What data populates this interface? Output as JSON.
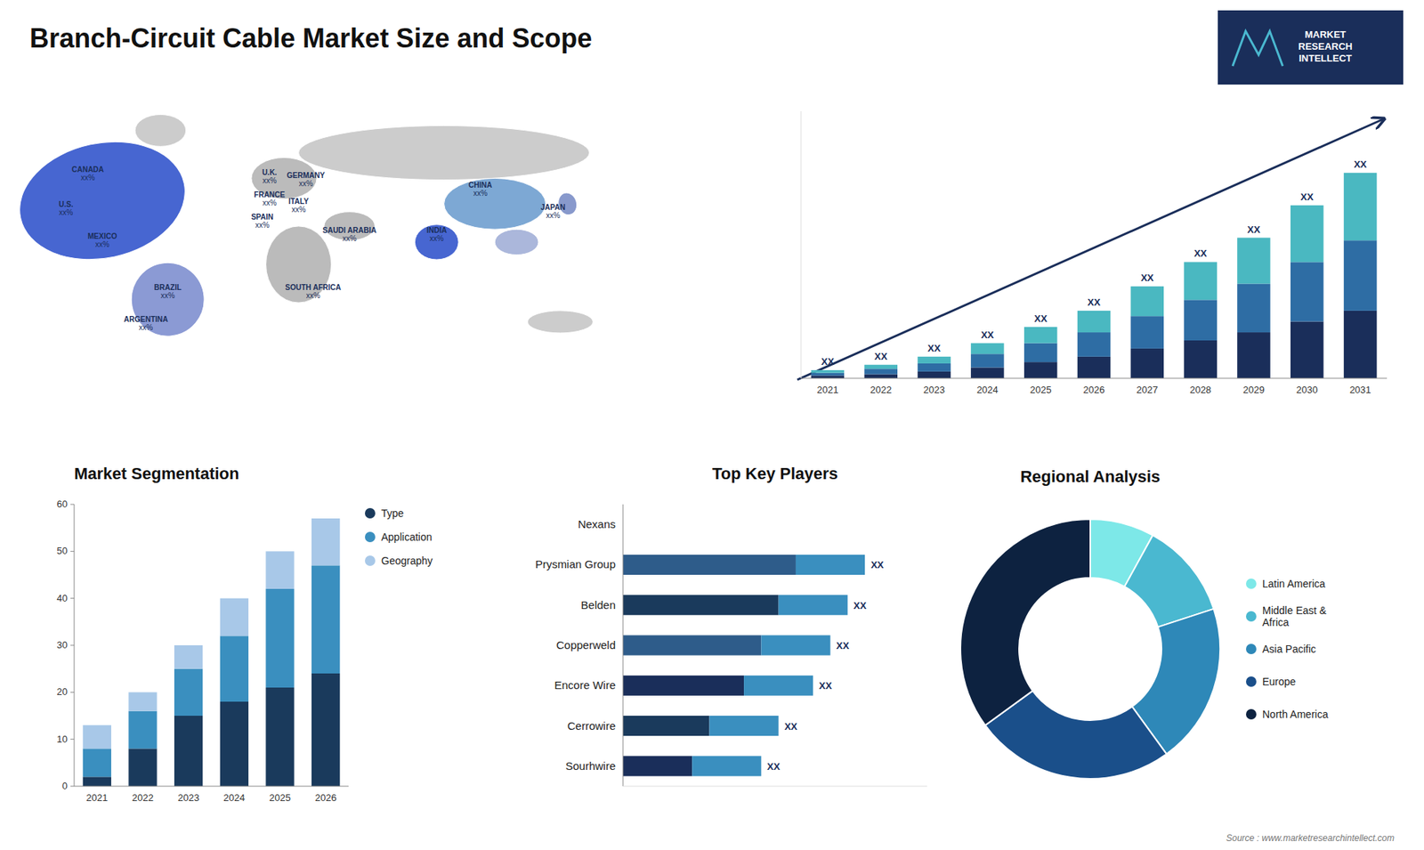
{
  "title": "Branch-Circuit Cable Market Size and Scope",
  "annotations": [
    "Source : www.marketresearchintellect.com",
    "MARKET",
    "RESEARCH",
    "INTELLECT"
  ],
  "chart_data": [
    {
      "type": "map",
      "categories": [
        "CANADA",
        "U.S.",
        "MEXICO",
        "BRAZIL",
        "ARGENTINA",
        "U.K.",
        "FRANCE",
        "SPAIN",
        "GERMANY",
        "ITALY",
        "SAUDI ARABIA",
        "SOUTH AFRICA",
        "CHINA",
        "JAPAN",
        "INDIA"
      ],
      "annotations": [
        "xx%",
        "xx%",
        "xx%",
        "xx%",
        "xx%",
        "xx%",
        "xx%",
        "xx%",
        "xx%",
        "xx%",
        "xx%",
        "xx%",
        "xx%",
        "xx%",
        "xx%"
      ]
    },
    {
      "type": "bar",
      "stacked": true,
      "categories": [
        "2021",
        "2022",
        "2023",
        "2024",
        "2025",
        "2026",
        "2027",
        "2028",
        "2029",
        "2030",
        "2031"
      ],
      "series": [
        {
          "color": "#1a2e5a",
          "values": [
            1,
            1.5,
            2.5,
            4,
            6,
            8,
            11,
            14,
            17,
            21,
            25
          ]
        },
        {
          "color": "#2e6da4",
          "values": [
            1,
            2,
            3,
            5,
            7,
            9,
            12,
            15,
            18,
            22,
            26
          ]
        },
        {
          "color": "#4ab8c1",
          "values": [
            1,
            1.5,
            2.5,
            4,
            6,
            8,
            11,
            14,
            17,
            21,
            25
          ]
        }
      ],
      "ylim": [
        0,
        98.8
      ],
      "tick_labels": "x",
      "grid": false,
      "annotations": [
        "XX",
        "XX",
        "XX",
        "XX",
        "XX",
        "XX",
        "XX",
        "XX",
        "XX",
        "XX",
        "XX"
      ]
    },
    {
      "type": "bar",
      "title": "Market Segmentation",
      "stacked": true,
      "categories": [
        "2021",
        "2022",
        "2023",
        "2024",
        "2025",
        "2026"
      ],
      "series": [
        {
          "name": "Type",
          "color": "#1a3a5c",
          "values": [
            2,
            8,
            15,
            18,
            21,
            24
          ]
        },
        {
          "name": "Application",
          "color": "#3a8fbf",
          "values": [
            6,
            8,
            10,
            14,
            21,
            23
          ]
        },
        {
          "name": "Geography",
          "color": "#a8c8e8",
          "values": [
            5,
            4,
            5,
            8,
            8,
            10
          ]
        }
      ],
      "ylim": [
        0,
        60
      ],
      "yticks": [
        0,
        10,
        20,
        30,
        40,
        50,
        60
      ],
      "legend": "right",
      "grid": false
    },
    {
      "type": "bar",
      "title": "Top Key Players",
      "orientation": "horizontal",
      "stacked": true,
      "categories": [
        "Nexans",
        "Prysmian Group",
        "Belden",
        "Copperweld",
        "Encore Wire",
        "Cerrowire",
        "Sourhwire"
      ],
      "series": [
        {
          "colors": [
            "#1a2e5a",
            "#2e5c8a",
            "#1a3a5c",
            "#2e5c8a",
            "#1a2e5a",
            "#1a3a5c",
            "#1a2e5a"
          ],
          "values": [
            0,
            50,
            45,
            40,
            35,
            25,
            20
          ]
        },
        {
          "colors": [
            "#3a8fbf",
            "#3a8fbf",
            "#3a8fbf",
            "#3a8fbf",
            "#3a8fbf",
            "#3a8fbf",
            "#3a8fbf"
          ],
          "values": [
            0,
            20,
            20,
            20,
            20,
            20,
            20
          ]
        }
      ],
      "xlim": [
        0,
        88
      ],
      "tick_labels": "y",
      "grid": false,
      "annotations": [
        "XX",
        "XX",
        "XX",
        "XX",
        "XX",
        "XX"
      ]
    },
    {
      "type": "pie",
      "title": "Regional Analysis",
      "categories": [
        "Latin America",
        "Middle East &\nAfrica",
        "Asia Pacific",
        "Europe",
        "North America"
      ],
      "values": [
        8,
        12,
        20,
        25,
        35
      ],
      "colors": [
        "#7de8e8",
        "#4ab8d0",
        "#2e88b8",
        "#1a4f8a",
        "#0d2240"
      ],
      "legend": "right"
    }
  ]
}
